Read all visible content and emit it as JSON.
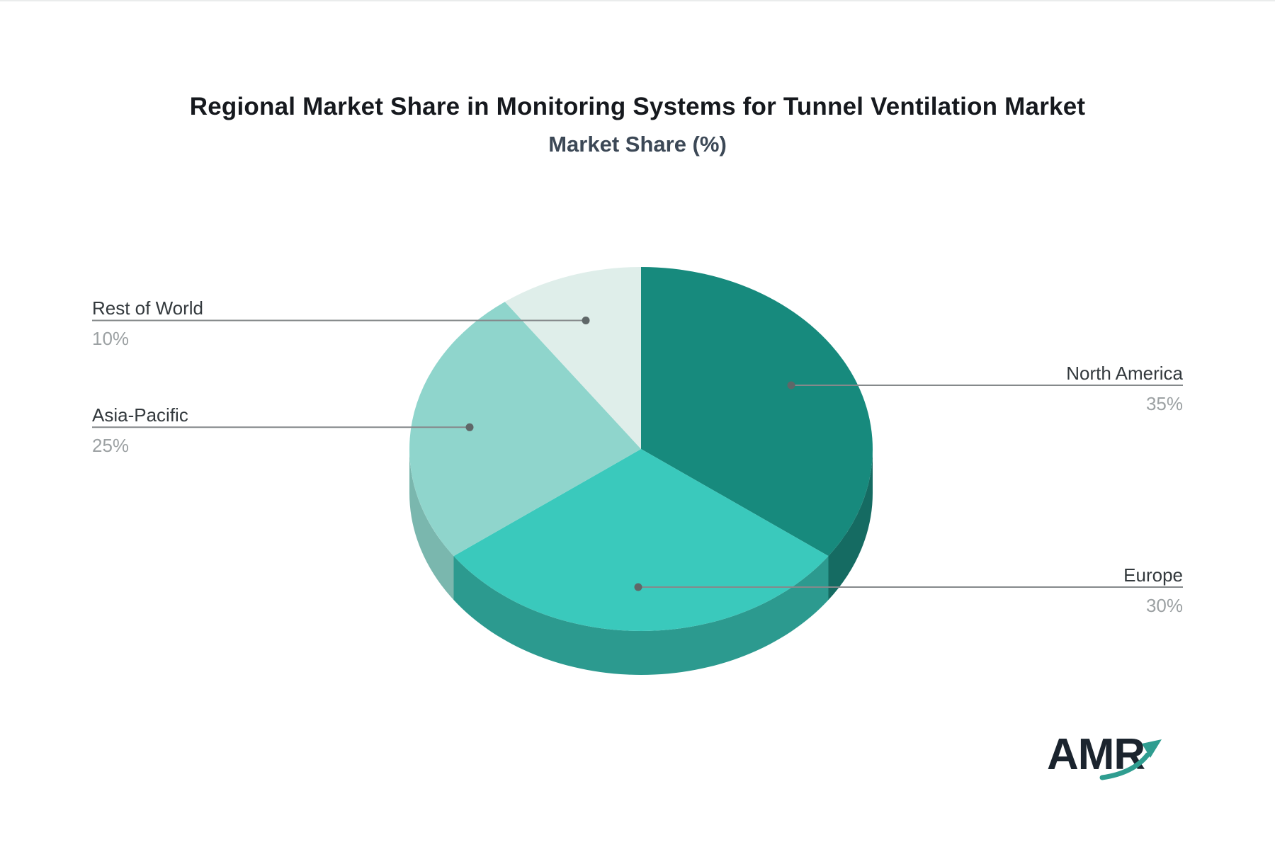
{
  "title": "Regional Market Share in Monitoring Systems for Tunnel Ventilation Market",
  "subtitle": "Market Share (%)",
  "chart_data": {
    "type": "pie",
    "title": "Regional Market Share in Monitoring Systems for Tunnel Ventilation Market",
    "subtitle": "Market Share (%)",
    "unit": "%",
    "effect": "3d",
    "start_angle_deg": 0,
    "direction": "clockwise",
    "legend_position": "none",
    "slices": [
      {
        "label": "North America",
        "value": 35,
        "pct_text": "35%",
        "color": "#178a7d",
        "side_color": "#156b62"
      },
      {
        "label": "Europe",
        "value": 30,
        "pct_text": "30%",
        "color": "#3ac9bc",
        "side_color": "#2c9a8f"
      },
      {
        "label": "Asia-Pacific",
        "value": 25,
        "pct_text": "25%",
        "color": "#8fd5cc",
        "side_color": "#7ab7ae"
      },
      {
        "label": "Rest of World",
        "value": 10,
        "pct_text": "10%",
        "color": "#dfeeea"
      }
    ]
  },
  "logo": {
    "text": "AMR",
    "text_color": "#1b242e",
    "arrow_color": "#2f9d90"
  },
  "style": {
    "background": "#ffffff",
    "title_color": "#16191e",
    "subtitle_color": "#3c4856",
    "label_name_color": "#33393d",
    "label_pct_color": "#9ca1a3",
    "leader_line_color": "#85898b",
    "dot_color": "#5f6768"
  }
}
